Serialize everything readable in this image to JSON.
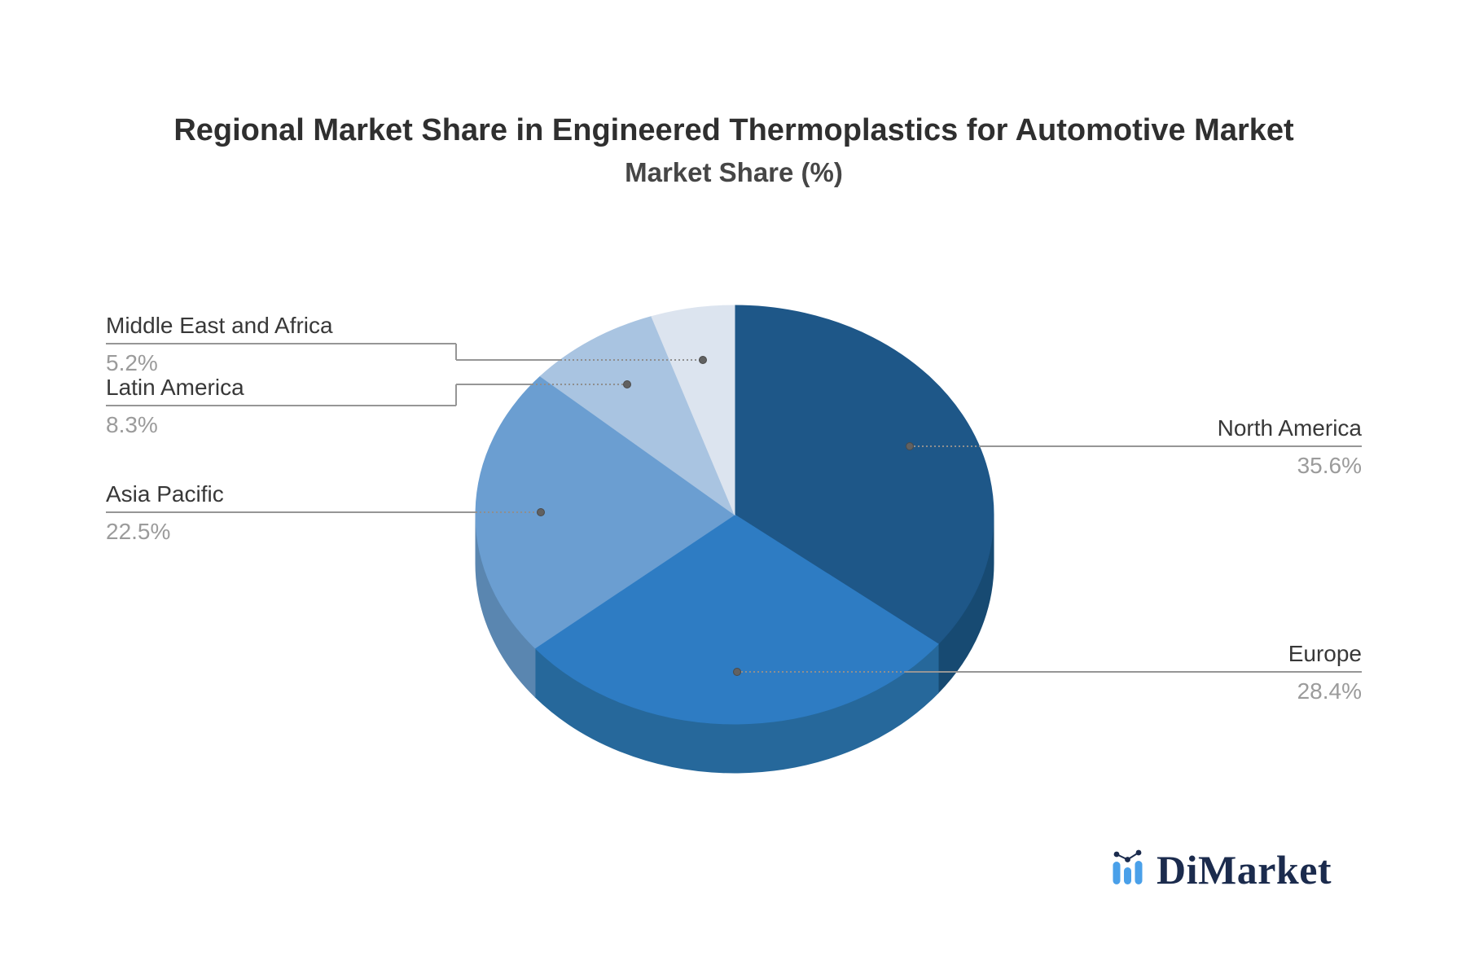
{
  "title": "Regional Market Share in Engineered Thermoplastics for Automotive Market",
  "subtitle": "Market Share (%)",
  "logo": {
    "text": "DiMarket"
  },
  "chart_data": {
    "type": "pie",
    "title": "Regional Market Share in Engineered Thermoplastics for Automotive Market",
    "subtitle": "Market Share (%)",
    "unit": "%",
    "effect": "3d",
    "direction": "clockwise",
    "start_angle_deg": 0,
    "legend_position": "callout-labels",
    "leader_color": "#969696",
    "slices": [
      {
        "label": "North America",
        "value": 35.6,
        "display": "35.6%",
        "color": "#1e5788",
        "side_color": "#174a72"
      },
      {
        "label": "Europe",
        "value": 28.4,
        "display": "28.4%",
        "color": "#2e7cc3",
        "side_color": "#26689b"
      },
      {
        "label": "Asia Pacific",
        "value": 22.5,
        "display": "22.5%",
        "color": "#6b9ed1",
        "side_color": "#5a86b0"
      },
      {
        "label": "Latin America",
        "value": 8.3,
        "display": "8.3%",
        "color": "#a9c4e1",
        "side_color": "#8ba7c4"
      },
      {
        "label": "Middle East and Africa",
        "value": 5.2,
        "display": "5.2%",
        "color": "#dce4ef",
        "side_color": "#b9c5d6"
      }
    ]
  }
}
